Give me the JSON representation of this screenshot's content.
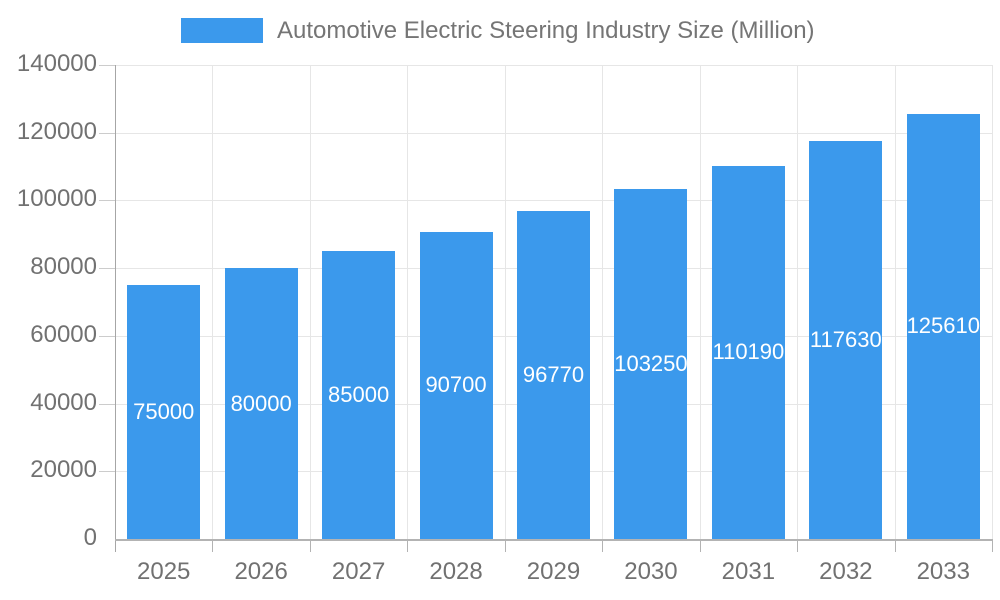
{
  "chart_data": {
    "type": "bar",
    "title": "Automotive Electric Steering Industry Size (Million)",
    "categories": [
      "2025",
      "2026",
      "2027",
      "2028",
      "2029",
      "2030",
      "2031",
      "2032",
      "2033"
    ],
    "values": [
      75000,
      80000,
      85000,
      90700,
      96770,
      103250,
      110190,
      117630,
      125610
    ],
    "bar_labels": [
      "75000",
      "80000",
      "85000",
      "90700",
      "96770",
      "103250",
      "110190",
      "117630",
      "125610"
    ],
    "xlabel": "",
    "ylabel": "",
    "ylim": [
      0,
      140000
    ],
    "ytick_interval": 20000,
    "ytick_labels": [
      "0",
      "20000",
      "40000",
      "60000",
      "80000",
      "100000",
      "120000",
      "140000"
    ],
    "grid": "on",
    "legend_position": "top",
    "colors": {
      "bar": "#3b99ec",
      "bar_label_text": "#ffffff",
      "axis_label_text": "#717171",
      "legend_text": "#757575",
      "gridline": "#e6e6e6",
      "axis_line": "#b3b3b3",
      "background": "#ffffff"
    }
  }
}
